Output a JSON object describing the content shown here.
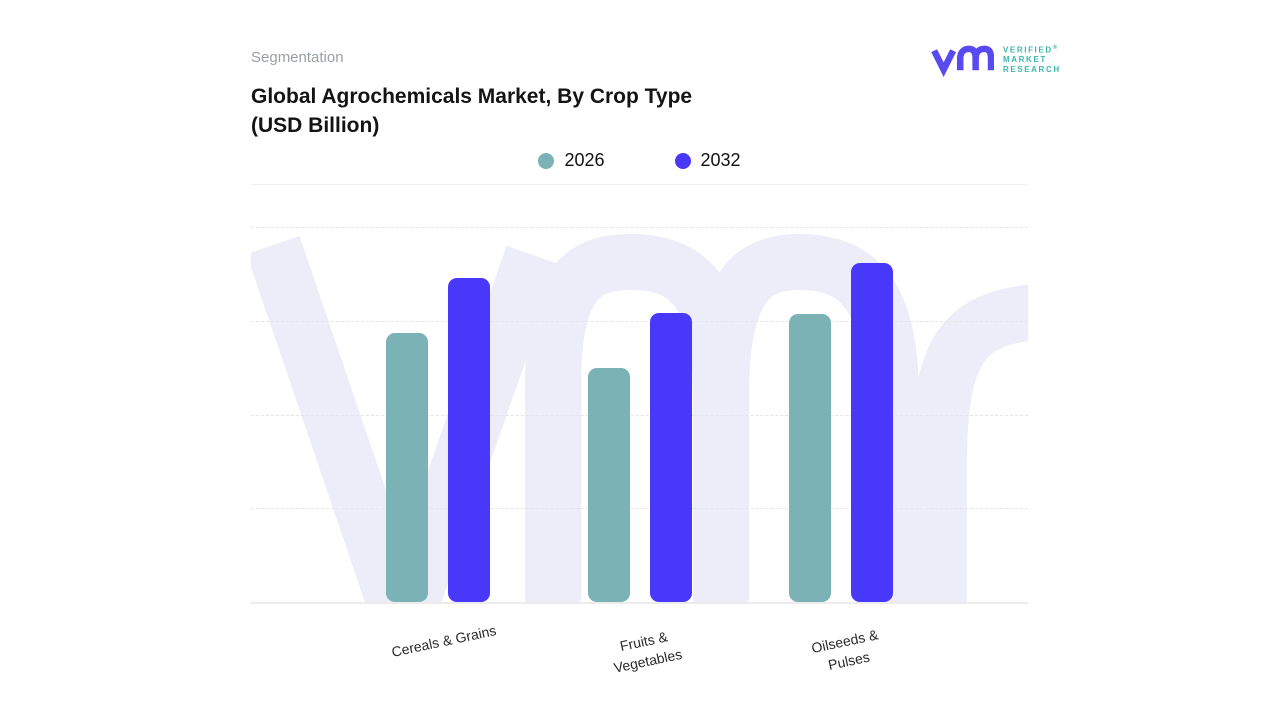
{
  "header": {
    "eyebrow": "Segmentation",
    "title_line1": "Global Agrochemicals Market, By Crop Type",
    "title_line2": "(USD Billion)"
  },
  "logo": {
    "mark": "vm-monogram",
    "mark_color": "#584af0",
    "text_color": "#3db5ae",
    "lines": [
      "VERIFIED",
      "MARKET",
      "RESEARCH"
    ],
    "registered": "®"
  },
  "colors": {
    "series_2026": "#7ab2b6",
    "series_2032": "#4838fa",
    "watermark": "#ecedf8",
    "gridline": "#e4e4ea",
    "divider": "#efefef"
  },
  "chart_data": {
    "type": "bar",
    "title": "Global Agrochemicals Market, By Crop Type (USD Billion)",
    "categories": [
      "Cereals & Grains",
      "Fruits &\nVegetables",
      "Oilseeds &\nPulses"
    ],
    "series": [
      {
        "name": "2026",
        "color": "#7ab2b6",
        "values": [
          2.87,
          2.5,
          3.07
        ]
      },
      {
        "name": "2032",
        "color": "#4838fa",
        "values": [
          3.46,
          3.08,
          3.62
        ]
      }
    ],
    "ylim": [
      0,
      4
    ],
    "value_units": "relative gridline units (y-axis tick labels not shown in figure)",
    "xlabel": "",
    "ylabel": "",
    "grid": "horizontal dashed, 4 lines",
    "legend_position": "top-center",
    "watermark": "vmr monogram behind plot"
  }
}
